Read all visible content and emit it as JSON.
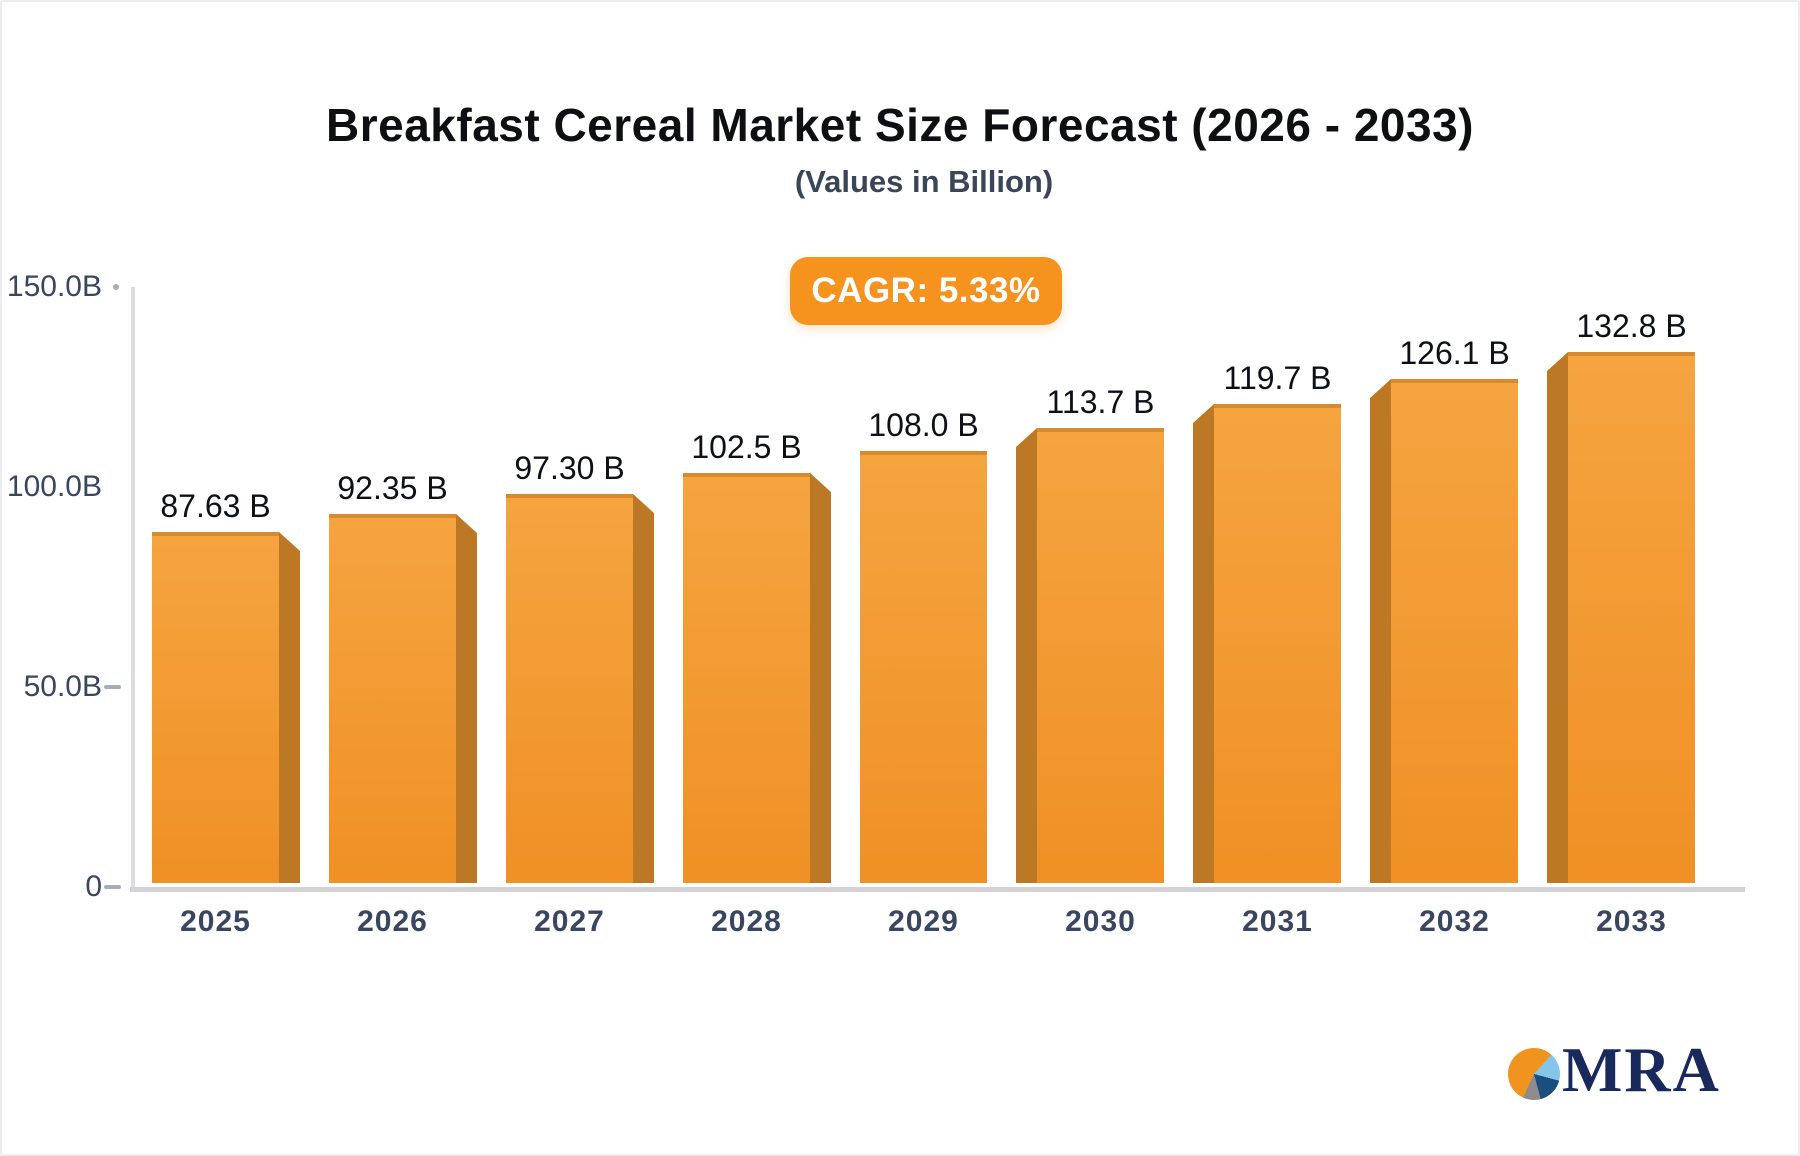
{
  "title": "Breakfast Cereal Market Size Forecast (2026 - 2033)",
  "subtitle": "(Values in Billion)",
  "badge": {
    "label": "CAGR: 5.33%"
  },
  "logo": {
    "text": "MRA"
  },
  "colors": {
    "title": "#0e0f12",
    "badge_bg": "#f6921e",
    "bar_front_top": "#f5a440",
    "bar_front_bottom": "#f09025",
    "bar_side": "#bd7826",
    "bar_top_edge": "#d98a2c",
    "axis_text": "#3a4660",
    "logo_navy": "#19295b"
  },
  "chart_data": {
    "type": "bar",
    "title": "Breakfast Cereal Market Size Forecast (2026 - 2033)",
    "subtitle": "(Values in Billion)",
    "annotation": "CAGR: 5.33%",
    "categories": [
      "2025",
      "2026",
      "2027",
      "2028",
      "2029",
      "2030",
      "2031",
      "2032",
      "2033"
    ],
    "values": [
      87.63,
      92.35,
      97.3,
      102.5,
      108.0,
      113.7,
      119.7,
      126.1,
      132.8
    ],
    "value_labels": [
      "87.63 B",
      "92.35 B",
      "97.30 B",
      "102.5 B",
      "108.0 B",
      "113.7 B",
      "119.7 B",
      "126.1 B",
      "132.8 B"
    ],
    "xlabel": "",
    "ylabel": "",
    "ylim": [
      0,
      150
    ],
    "y_ticks": [
      {
        "label": "150.0B",
        "value": 150,
        "mark": "dot"
      },
      {
        "label": "100.0B",
        "value": 100,
        "mark": "none"
      },
      {
        "label": "50.0B",
        "value": 50,
        "mark": "dash"
      },
      {
        "label": "0",
        "value": 0,
        "mark": "dash"
      }
    ],
    "grid": false,
    "legend": false
  }
}
